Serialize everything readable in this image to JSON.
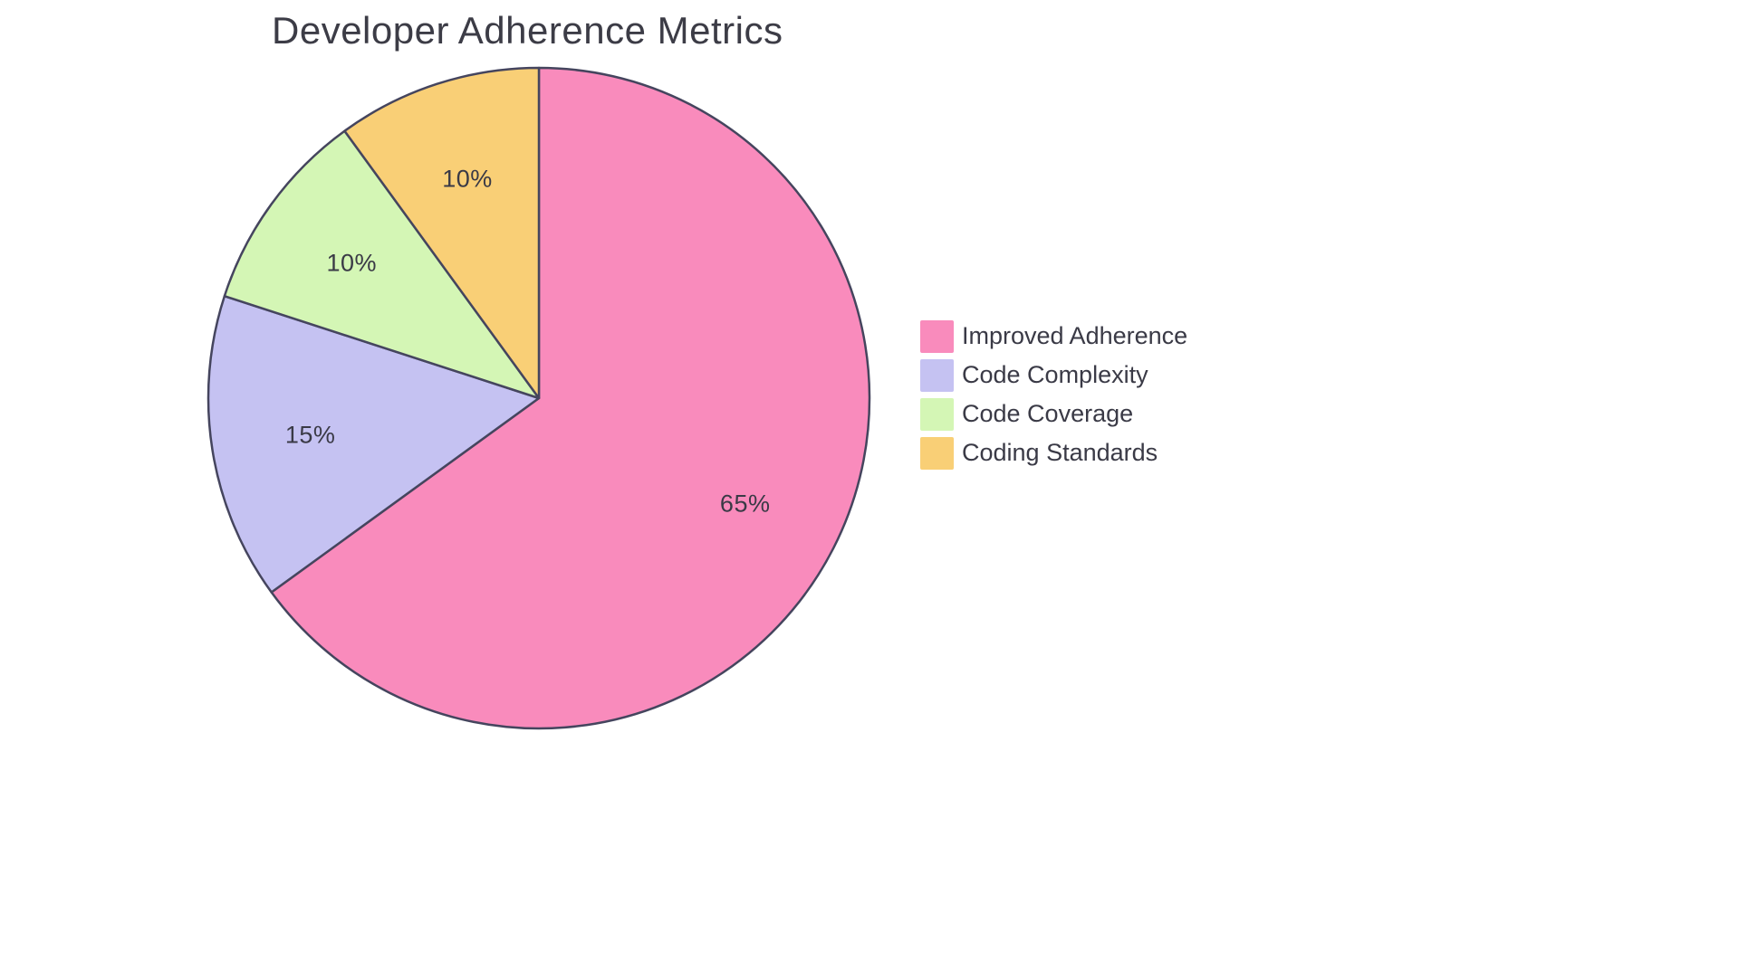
{
  "chart_data": {
    "type": "pie",
    "title": "Developer Adherence Metrics",
    "direction": "clockwise",
    "start_angle_deg": 0,
    "legend_position": "right",
    "slice_border_color": "#45455e",
    "label_color": "#3a3a46",
    "title_color": "#3c3c46",
    "series": [
      {
        "label": "Improved Adherence",
        "value": 65,
        "display": "65%",
        "color": "#f98bbc"
      },
      {
        "label": "Code Complexity",
        "value": 15,
        "display": "15%",
        "color": "#c5c2f2"
      },
      {
        "label": "Code Coverage",
        "value": 10,
        "display": "10%",
        "color": "#d4f6b5"
      },
      {
        "label": "Coding Standards",
        "value": 10,
        "display": "10%",
        "color": "#f9cf76"
      }
    ]
  }
}
